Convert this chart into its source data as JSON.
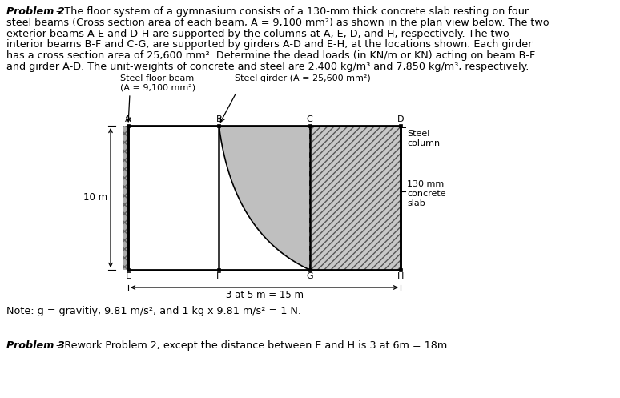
{
  "text_lines_p2": [
    [
      "Problem 2",
      " – The floor system of a gymnasium consists of a 130-mm thick concrete slab resting on four"
    ],
    [
      "steel beams (Cross section area of each beam, A = 9,100 mm²) as shown in the plan view below. The two"
    ],
    [
      "exterior beams A-E and D-H are supported by the columns at A, E, D, and H, respectively. The two"
    ],
    [
      "interior beams B-F and C-G, are supported by girders A-D and E-H, at the locations shown. Each girder"
    ],
    [
      "has a cross section area of 25,600 mm². Determine the dead loads (in KN/m or KN) acting on beam B-F"
    ],
    [
      "and girder A-D. The unit-weights of concrete and steel are 2,400 kg/m³ and 7,850 kg/m³, respectively."
    ]
  ],
  "note_text": "Note: g = gravitiy, 9.81 m/s², and 1 kg x 9.81 m/s² = 1 N.",
  "p3_bold": "Problem 3",
  "p3_rest": " – Rework Problem 2, except the distance between E and H is 3 at 6m = 18m.",
  "diagram": {
    "beam_label_line1": "Steel floor beam",
    "beam_label_line2": "(A = 9,100 mm²)",
    "girder_label": "Steel girder (A = 25,600 mm²)",
    "col_label": "Steel\ncolumn",
    "slab_label": "130 mm\nconcrete\nslab",
    "dim_left": "10 m",
    "dim_bottom": "3 at 5 m = 15 m",
    "pts_top": [
      "A",
      "B",
      "C",
      "D"
    ],
    "pts_bot": [
      "E",
      "F",
      "G",
      "H"
    ]
  },
  "bg": "#ffffff",
  "fg": "#000000",
  "fs_body": 9.2,
  "fs_diag": 8.0
}
